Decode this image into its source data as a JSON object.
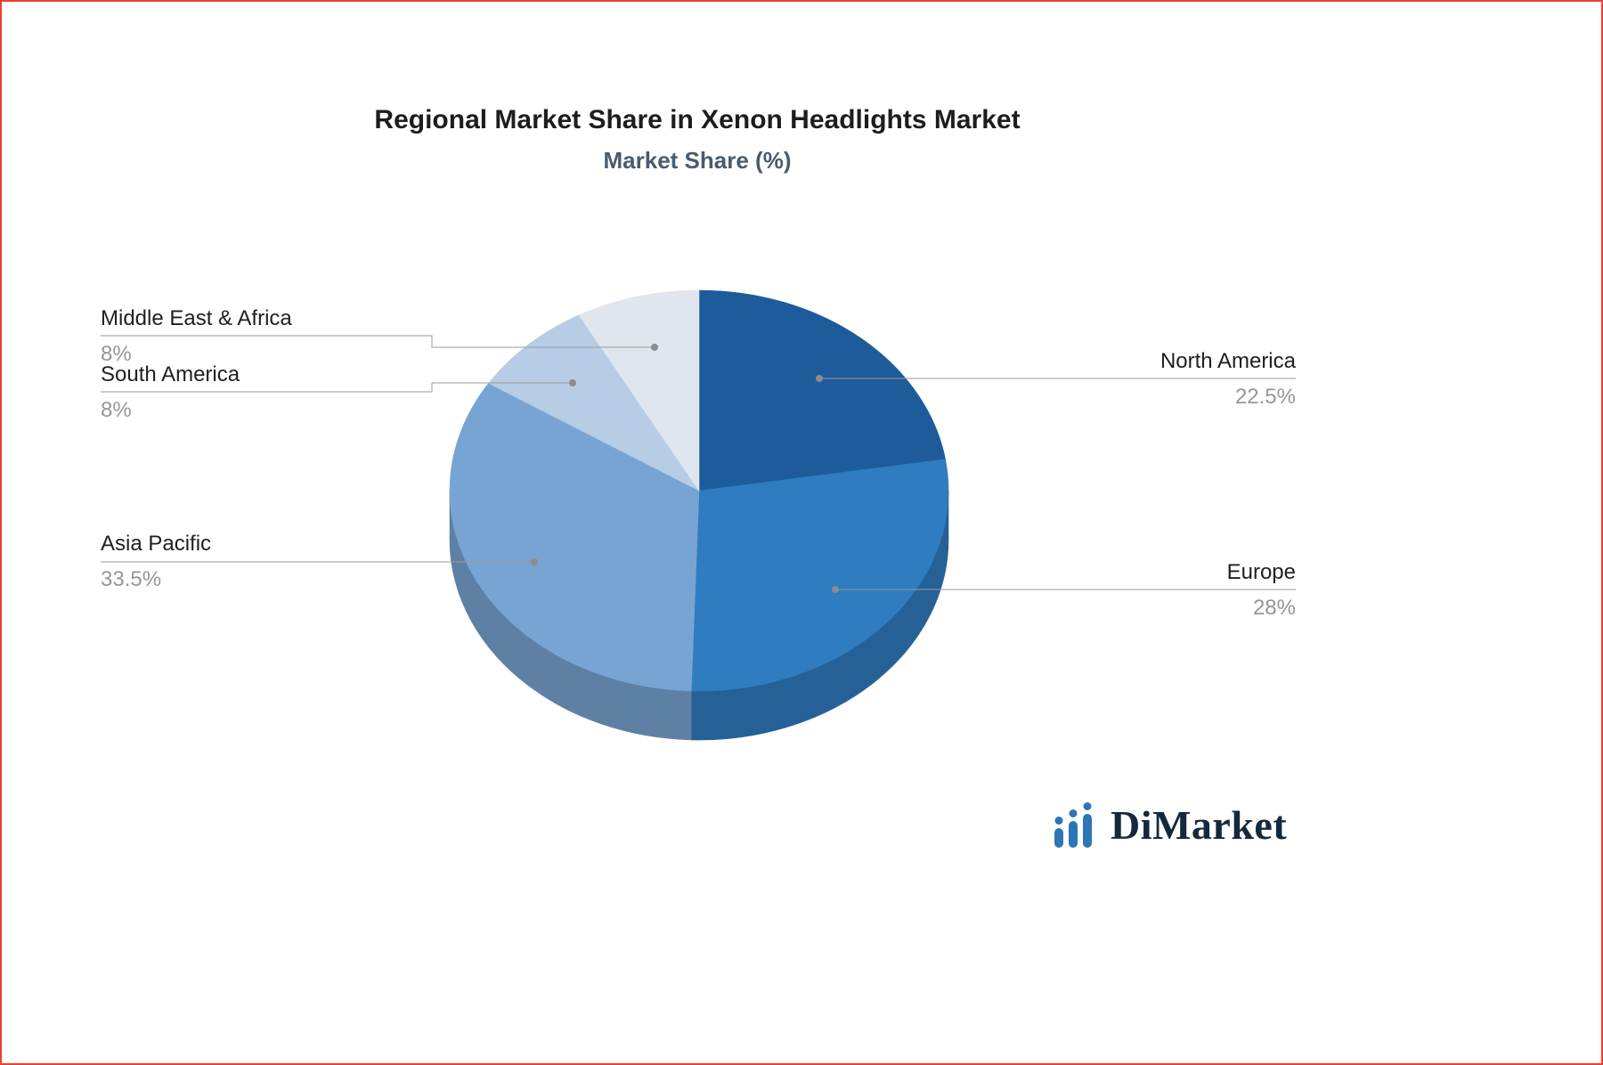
{
  "page": {
    "background": "#ffffff",
    "border_color": "#ef4034"
  },
  "header": {
    "title": "Regional Market Share in Xenon Headlights Market",
    "subtitle": "Market Share (%)"
  },
  "chart_data": {
    "type": "pie",
    "title": "Regional Market Share in Xenon Headlights Market",
    "subtitle": "Market Share (%)",
    "unit": "%",
    "effect": "3d",
    "start_angle_deg": 0,
    "direction": "clockwise",
    "legend_position": "none",
    "label_style": "leader-lines",
    "categories": [
      "North America",
      "Europe",
      "Asia Pacific",
      "South America",
      "Middle East & Africa"
    ],
    "values": [
      22.5,
      28,
      33.5,
      8,
      8
    ],
    "display_values": [
      "22.5%",
      "28%",
      "33.5%",
      "8%",
      "8%"
    ],
    "colors": [
      "#1d5b9b",
      "#2f7cc0",
      "#78a4d3",
      "#b7cde6",
      "#e0e6ee"
    ],
    "leader_line_color": "#9a9a9a",
    "leader_dot_color": "#8c8c8c",
    "label_name_color": "#1f1f1f",
    "label_value_color": "#969696"
  },
  "branding": {
    "logo_text": "DiMarket",
    "logo_icon": "bar-chart-icon",
    "logo_icon_color": "#2e75b6",
    "logo_text_color": "#16283c"
  }
}
